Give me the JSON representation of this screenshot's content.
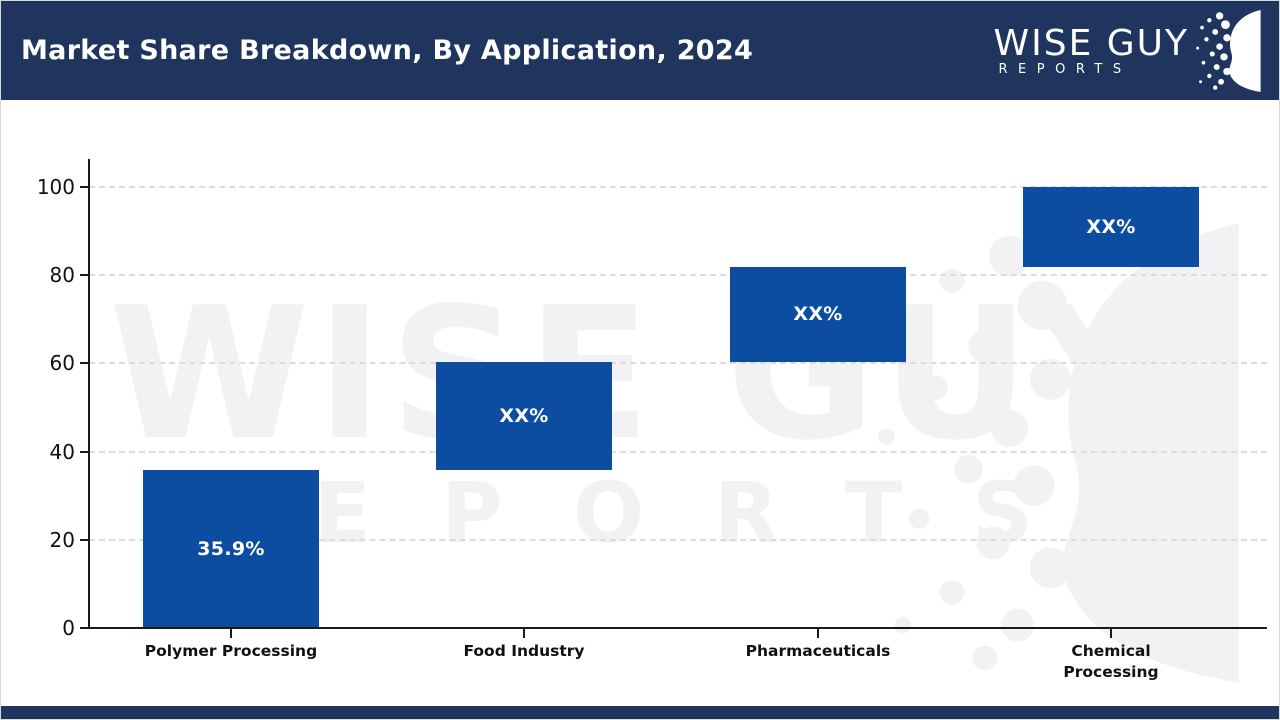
{
  "header": {
    "title": "Market Share Breakdown, By Application, 2024",
    "brand": {
      "line1": "WISE GUY",
      "line2": "REPORTS"
    }
  },
  "watermark": {
    "line1": "WISE GUY",
    "line2": "REPORTS"
  },
  "chart_data": {
    "type": "bar",
    "variant": "waterfall",
    "title": "Market Share Breakdown, By Application, 2024",
    "categories": [
      "Polymer Processing",
      "Food Industry",
      "Pharmaceuticals",
      "Chemical Processing"
    ],
    "category_lines": [
      [
        "Polymer Processing"
      ],
      [
        "Food Industry"
      ],
      [
        "Pharmaceuticals"
      ],
      [
        "Chemical",
        "Processing"
      ]
    ],
    "segments": [
      {
        "category": "Polymer Processing",
        "start": 0,
        "end": 35.9,
        "label": "35.9%"
      },
      {
        "category": "Food Industry",
        "start": 35.9,
        "end": 60.4,
        "label": "XX%"
      },
      {
        "category": "Pharmaceuticals",
        "start": 60.4,
        "end": 81.8,
        "label": "XX%"
      },
      {
        "category": "Chemical Processing",
        "start": 81.8,
        "end": 100,
        "label": "XX%"
      }
    ],
    "y_ticks": [
      0,
      20,
      40,
      60,
      80,
      100
    ],
    "ylim": [
      0,
      100
    ],
    "xlabel": "",
    "ylabel": "",
    "grid": "horizontal dashed",
    "legend": "none",
    "bar_color": "#0d4da1",
    "bar_label_color": "#ffffff"
  },
  "colors": {
    "header_bg": "#1f355e",
    "footer_bg": "#1f355e",
    "bar": "#0d4da1",
    "gridline": "#dcdcdc",
    "axis": "#1a1a1a",
    "watermark": "#f2f2f4",
    "title_text": "#ffffff"
  }
}
